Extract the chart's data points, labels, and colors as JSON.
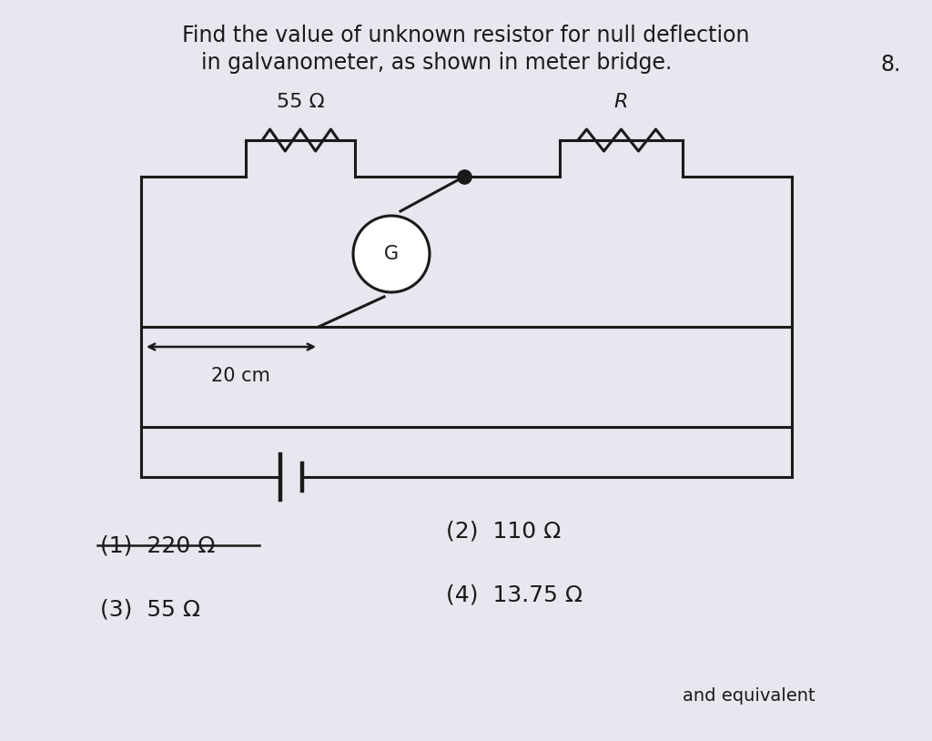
{
  "title_line1": "Find the value of unknown resistor for null deflection",
  "title_line2": "in galvanometer, as shown in meter bridge.",
  "question_number": "8.",
  "bg_color": "#ccc8c8",
  "paper_color": "#e8e6ee",
  "line_color": "#1a1a1a",
  "resistor_left_label": "55 Ω",
  "resistor_right_label": "R",
  "distance_label": "20 cm",
  "galvanometer_label": "G",
  "opt1_num": "(1)",
  "opt1_val": "220 Ω",
  "opt2_num": "(2)",
  "opt2_val": "110 Ω",
  "opt3_num": "(3)",
  "opt3_val": "55 Ω",
  "opt4_num": "(4)",
  "opt4_val": "13.75 Ω",
  "bottom_text": "and equivalent"
}
